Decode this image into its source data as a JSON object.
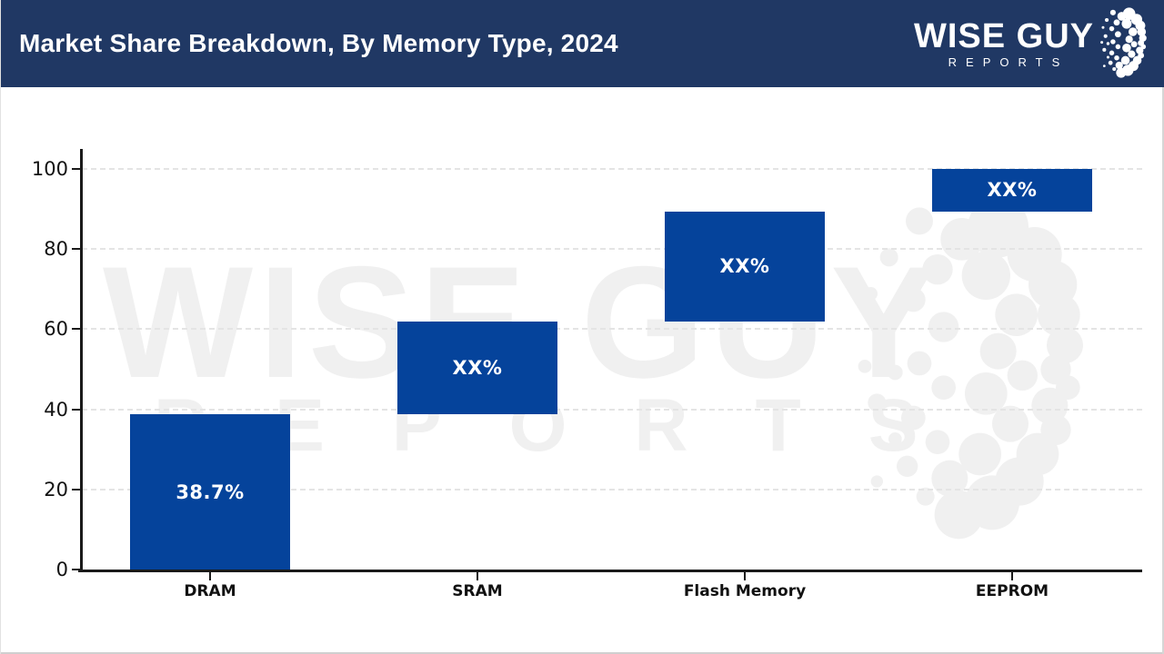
{
  "header": {
    "title": "Market Share Breakdown, By Memory Type, 2024",
    "bg_color": "#203864",
    "logo": {
      "line1": "WISE GUY",
      "line2": "REPORTS"
    }
  },
  "watermark": {
    "line1": "WISE GUY",
    "line2": "REPORTS"
  },
  "chart_data": {
    "type": "bar",
    "subtype": "waterfall",
    "title": "Market Share Breakdown, By Memory Type, 2024",
    "xlabel": "",
    "ylabel": "",
    "categories": [
      "DRAM",
      "SRAM",
      "Flash Memory",
      "EEPROM"
    ],
    "segments": [
      {
        "category": "DRAM",
        "start": 0,
        "end": 38.7,
        "label": "38.7%"
      },
      {
        "category": "SRAM",
        "start": 38.7,
        "end": 61.9,
        "label": "XX%"
      },
      {
        "category": "Flash Memory",
        "start": 61.9,
        "end": 89.4,
        "label": "XX%"
      },
      {
        "category": "EEPROM",
        "start": 89.4,
        "end": 100,
        "label": "XX%"
      }
    ],
    "y_ticks": [
      0,
      20,
      40,
      60,
      80,
      100
    ],
    "ylim": [
      0,
      105
    ],
    "grid": true,
    "gridline_style": "dashed",
    "legend": "none",
    "bar_color": "#05439b",
    "bar_label_color": "#ffffff",
    "axis_color": "#1a1a1a",
    "grid_color": "#e4e4e4",
    "watermark_color": "#f0f0f0"
  }
}
